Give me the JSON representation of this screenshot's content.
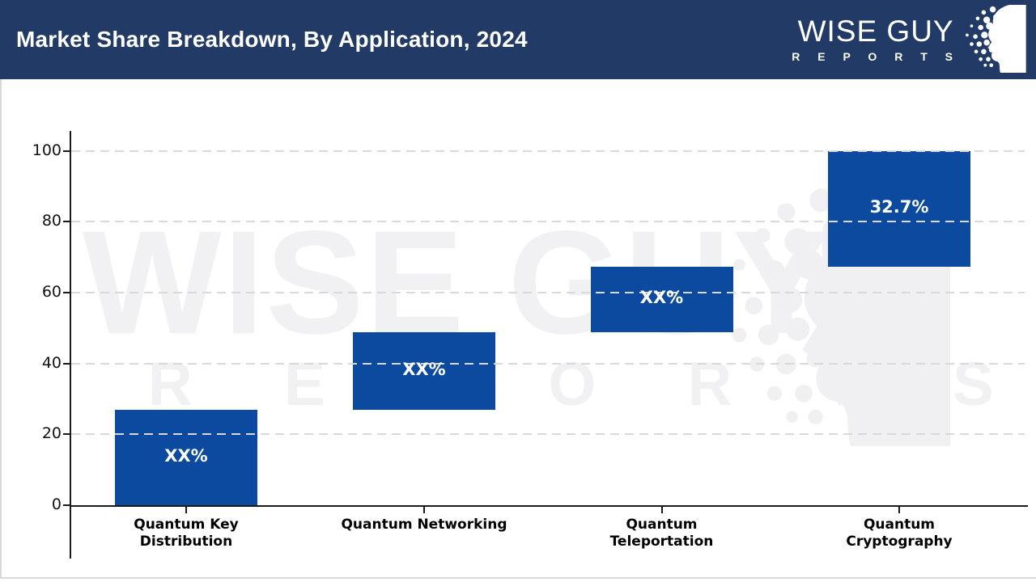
{
  "header": {
    "title": "Market Share Breakdown, By Application, 2024",
    "bg_color": "#213a66",
    "logo": {
      "wordmark": "WISE GUY",
      "tagline": "R E P O R T S"
    }
  },
  "watermark": {
    "wordmark": "WISE GUY",
    "tagline": "R E P O R T S"
  },
  "chart_data": {
    "type": "bar",
    "variant": "waterfall",
    "title": "Market Share Breakdown, By Application, 2024",
    "categories": [
      "Quantum Key Distribution",
      "Quantum Networking",
      "Quantum Teleportation",
      "Quantum Cryptography"
    ],
    "category_label_lines": [
      [
        "Quantum Key",
        "Distribution"
      ],
      [
        "Quantum Networking"
      ],
      [
        "Quantum",
        "Teleportation"
      ],
      [
        "Quantum",
        "Cryptography"
      ]
    ],
    "series": [
      {
        "name": "Market Share (%)",
        "segments": [
          {
            "category": "Quantum Key Distribution",
            "start": 0,
            "end": 26.9,
            "label": "XX%"
          },
          {
            "category": "Quantum Networking",
            "start": 26.9,
            "end": 48.8,
            "label": "XX%"
          },
          {
            "category": "Quantum Teleportation",
            "start": 48.8,
            "end": 67.3,
            "label": "XX%"
          },
          {
            "category": "Quantum Cryptography",
            "start": 67.3,
            "end": 100,
            "label": "32.7%"
          }
        ]
      }
    ],
    "xlabel": "",
    "ylabel": "",
    "ylim": [
      0,
      106
    ],
    "yticks": [
      0,
      20,
      40,
      60,
      80,
      100
    ],
    "grid": "horizontal-dashed",
    "legend": "none",
    "colors": {
      "bar": "#0b4a9e",
      "bar_label": "#ffffff",
      "grid": "#d9d9d9",
      "axis": "#1a1a1a",
      "tick_label": "#111111",
      "header_bg": "#213a66",
      "watermark": "#f1f1f3"
    }
  }
}
